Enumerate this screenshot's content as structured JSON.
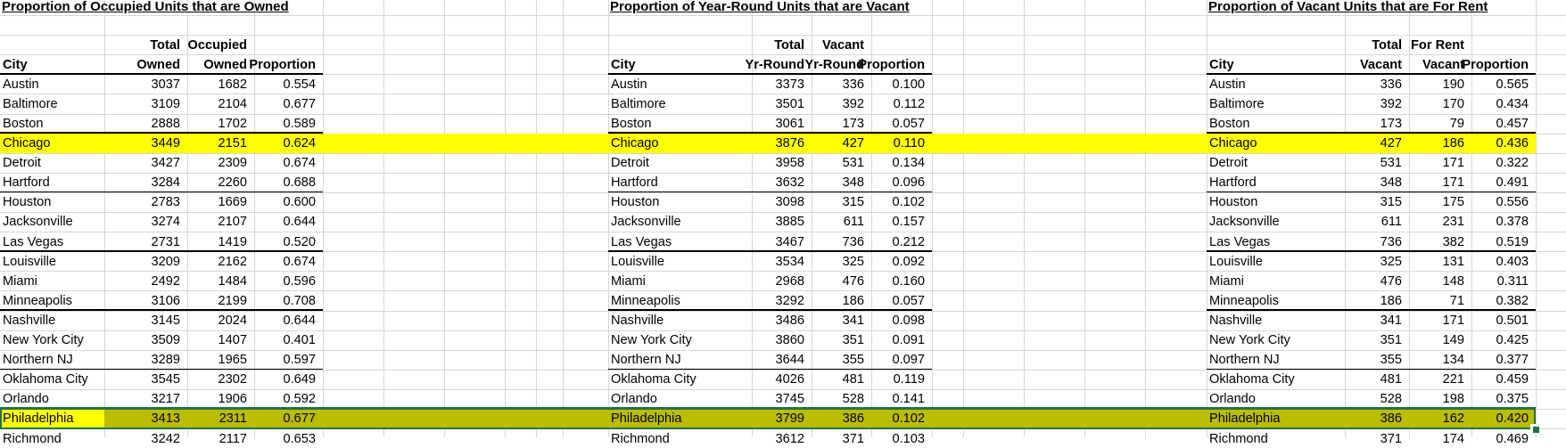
{
  "sheet": {
    "colors": {
      "highlight_yellow": "#FFFF00",
      "selected_highlight_olive": "#BCBC00",
      "selection_border_green": "#217346",
      "gridline_gray": "#D6D6D6",
      "table_border_black": "#000000"
    },
    "highlighted_row_city": "Chicago",
    "selected_row_city": "Philadelphia",
    "active_cell_value": "Philadelphia"
  },
  "tables": [
    {
      "title": "Proportion of Occupied Units that are Owned",
      "header_top": [
        "",
        "Total",
        "Occupied",
        ""
      ],
      "header": [
        "City",
        "Owned",
        "Owned",
        "Proportion"
      ],
      "rows": [
        [
          "Austin",
          "3037",
          "1682",
          "0.554"
        ],
        [
          "Baltimore",
          "3109",
          "2104",
          "0.677"
        ],
        [
          "Boston",
          "2888",
          "1702",
          "0.589"
        ],
        [
          "Chicago",
          "3449",
          "2151",
          "0.624"
        ],
        [
          "Detroit",
          "3427",
          "2309",
          "0.674"
        ],
        [
          "Hartford",
          "3284",
          "2260",
          "0.688"
        ],
        [
          "Houston",
          "2783",
          "1669",
          "0.600"
        ],
        [
          "Jacksonville",
          "3274",
          "2107",
          "0.644"
        ],
        [
          "Las Vegas",
          "2731",
          "1419",
          "0.520"
        ],
        [
          "Louisville",
          "3209",
          "2162",
          "0.674"
        ],
        [
          "Miami",
          "2492",
          "1484",
          "0.596"
        ],
        [
          "Minneapolis",
          "3106",
          "2199",
          "0.708"
        ],
        [
          "Nashville",
          "3145",
          "2024",
          "0.644"
        ],
        [
          "New York City",
          "3509",
          "1407",
          "0.401"
        ],
        [
          "Northern NJ",
          "3289",
          "1965",
          "0.597"
        ],
        [
          "Oklahoma City",
          "3545",
          "2302",
          "0.649"
        ],
        [
          "Orlando",
          "3217",
          "1906",
          "0.592"
        ],
        [
          "Philadelphia",
          "3413",
          "2311",
          "0.677"
        ]
      ],
      "partial_row": [
        "Richmond",
        "3242",
        "2117",
        "0.653"
      ]
    },
    {
      "title": "Proportion of Year-Round Units that are Vacant",
      "header_top": [
        "",
        "Total",
        "Vacant",
        ""
      ],
      "header": [
        "City",
        "Yr-Round",
        "Yr-Round",
        "Proportion"
      ],
      "rows": [
        [
          "Austin",
          "3373",
          "336",
          "0.100"
        ],
        [
          "Baltimore",
          "3501",
          "392",
          "0.112"
        ],
        [
          "Boston",
          "3061",
          "173",
          "0.057"
        ],
        [
          "Chicago",
          "3876",
          "427",
          "0.110"
        ],
        [
          "Detroit",
          "3958",
          "531",
          "0.134"
        ],
        [
          "Hartford",
          "3632",
          "348",
          "0.096"
        ],
        [
          "Houston",
          "3098",
          "315",
          "0.102"
        ],
        [
          "Jacksonville",
          "3885",
          "611",
          "0.157"
        ],
        [
          "Las Vegas",
          "3467",
          "736",
          "0.212"
        ],
        [
          "Louisville",
          "3534",
          "325",
          "0.092"
        ],
        [
          "Miami",
          "2968",
          "476",
          "0.160"
        ],
        [
          "Minneapolis",
          "3292",
          "186",
          "0.057"
        ],
        [
          "Nashville",
          "3486",
          "341",
          "0.098"
        ],
        [
          "New York City",
          "3860",
          "351",
          "0.091"
        ],
        [
          "Northern NJ",
          "3644",
          "355",
          "0.097"
        ],
        [
          "Oklahoma City",
          "4026",
          "481",
          "0.119"
        ],
        [
          "Orlando",
          "3745",
          "528",
          "0.141"
        ],
        [
          "Philadelphia",
          "3799",
          "386",
          "0.102"
        ]
      ],
      "partial_row": [
        "Richmond",
        "3612",
        "371",
        "0.103"
      ]
    },
    {
      "title": "Proportion of Vacant Units that are For Rent",
      "header_top": [
        "",
        "Total",
        "For Rent",
        ""
      ],
      "header": [
        "City",
        "Vacant",
        "Vacant",
        "Proportion"
      ],
      "rows": [
        [
          "Austin",
          "336",
          "190",
          "0.565"
        ],
        [
          "Baltimore",
          "392",
          "170",
          "0.434"
        ],
        [
          "Boston",
          "173",
          "79",
          "0.457"
        ],
        [
          "Chicago",
          "427",
          "186",
          "0.436"
        ],
        [
          "Detroit",
          "531",
          "171",
          "0.322"
        ],
        [
          "Hartford",
          "348",
          "171",
          "0.491"
        ],
        [
          "Houston",
          "315",
          "175",
          "0.556"
        ],
        [
          "Jacksonville",
          "611",
          "231",
          "0.378"
        ],
        [
          "Las Vegas",
          "736",
          "382",
          "0.519"
        ],
        [
          "Louisville",
          "325",
          "131",
          "0.403"
        ],
        [
          "Miami",
          "476",
          "148",
          "0.311"
        ],
        [
          "Minneapolis",
          "186",
          "71",
          "0.382"
        ],
        [
          "Nashville",
          "341",
          "171",
          "0.501"
        ],
        [
          "New York City",
          "351",
          "149",
          "0.425"
        ],
        [
          "Northern NJ",
          "355",
          "134",
          "0.377"
        ],
        [
          "Oklahoma City",
          "481",
          "221",
          "0.459"
        ],
        [
          "Orlando",
          "528",
          "198",
          "0.375"
        ],
        [
          "Philadelphia",
          "386",
          "162",
          "0.420"
        ]
      ],
      "partial_row": [
        "Richmond",
        "371",
        "174",
        "0.469"
      ]
    }
  ]
}
